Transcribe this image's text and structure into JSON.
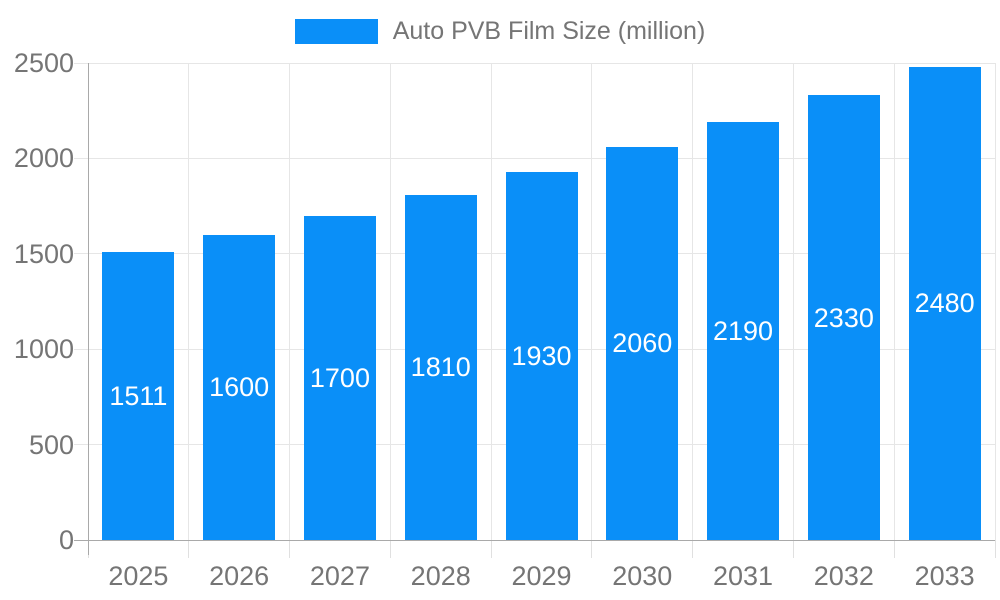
{
  "chart_data": {
    "type": "bar",
    "title": "Auto PVB Film Size (million)",
    "legend": [
      {
        "label": "Auto PVB Film Size (million)",
        "color": "#0a8ff8"
      }
    ],
    "legend_position": "top-center",
    "categories": [
      "2025",
      "2026",
      "2027",
      "2028",
      "2029",
      "2030",
      "2031",
      "2032",
      "2033"
    ],
    "values": [
      1511,
      1600,
      1700,
      1810,
      1930,
      2060,
      2190,
      2330,
      2480
    ],
    "value_labels_shown": true,
    "xlabel": "",
    "ylabel": "",
    "ylim": [
      0,
      2500
    ],
    "yticks": [
      0,
      500,
      1000,
      1500,
      2000,
      2500
    ],
    "grid": true,
    "colors": {
      "bar": "#0a8ff8",
      "value_label": "#ffffff",
      "axis_text": "#757575",
      "gridline": "#e6e6e6",
      "tick_mark": "#e0e0e0",
      "axis_line": "#a9a9a9",
      "background": "#ffffff"
    }
  }
}
